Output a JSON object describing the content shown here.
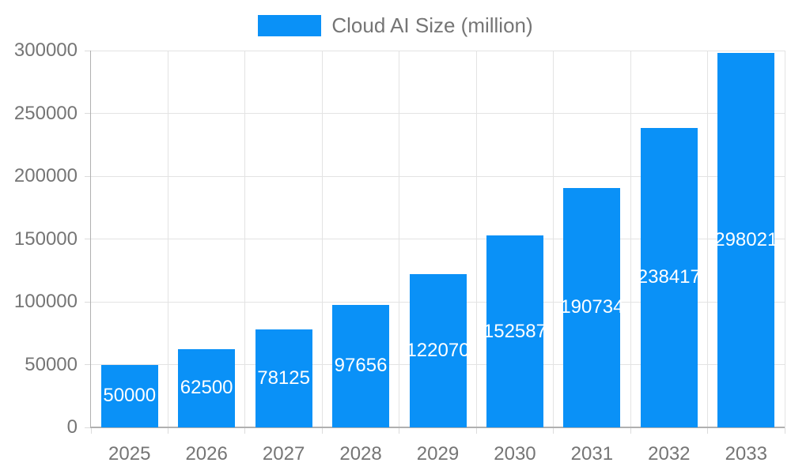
{
  "chart_data": {
    "type": "bar",
    "title": "Cloud AI Size (million)",
    "legend": {
      "position": "top",
      "label": "Cloud AI Size (million)"
    },
    "categories": [
      "2025",
      "2026",
      "2027",
      "2028",
      "2029",
      "2030",
      "2031",
      "2032",
      "2033"
    ],
    "values": [
      50000,
      62500,
      78125,
      97656,
      122070,
      152587,
      190734,
      238417,
      298021
    ],
    "bar_value_labels": [
      "50000",
      "62500",
      "78125",
      "97656",
      "122070",
      "152587",
      "190734",
      "238417",
      "298021"
    ],
    "xlabel": "",
    "ylabel": "",
    "ylim": [
      0,
      300000
    ],
    "ytick_step": 50000,
    "ytick_labels": [
      "0",
      "50000",
      "100000",
      "150000",
      "200000",
      "250000",
      "300000"
    ],
    "grid": true,
    "colors": {
      "bar": "#0a91f7",
      "bar_value_text": "#ffffff",
      "axis_text": "#757575",
      "gridline": "#e3e3e3",
      "axis_line": "#b0b0b0",
      "tick": "#dcdcdc"
    }
  }
}
